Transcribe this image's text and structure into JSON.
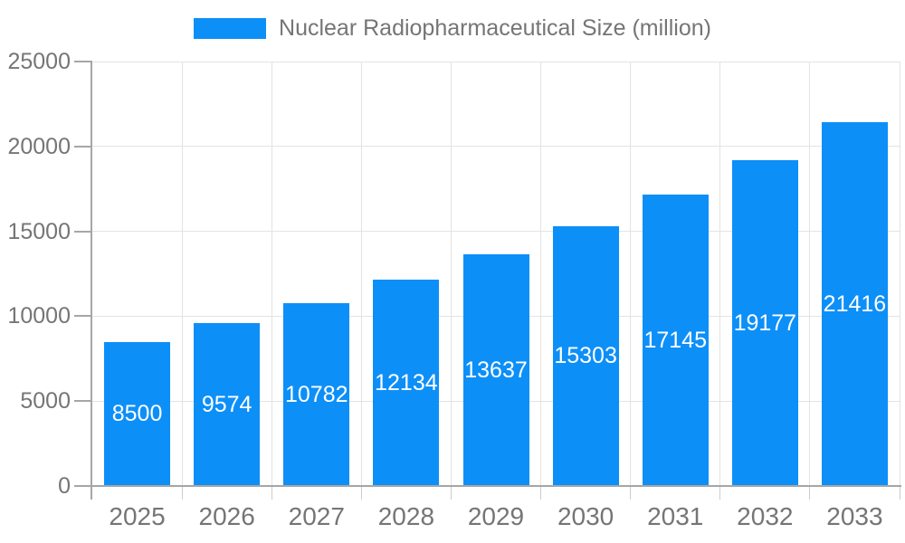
{
  "legend": {
    "label": "Nuclear Radiopharmaceutical Size (million)"
  },
  "chart_data": {
    "type": "bar",
    "title": "Nuclear Radiopharmaceutical Size (million)",
    "categories": [
      "2025",
      "2026",
      "2027",
      "2028",
      "2029",
      "2030",
      "2031",
      "2032",
      "2033"
    ],
    "series": [
      {
        "name": "Nuclear Radiopharmaceutical Size (million)",
        "values": [
          8500,
          9574,
          10782,
          12134,
          13637,
          15303,
          17145,
          19177,
          21416
        ]
      }
    ],
    "xlabel": "",
    "ylabel": "",
    "ylim": [
      0,
      25000
    ],
    "yticks": [
      0,
      5000,
      10000,
      15000,
      20000,
      25000
    ],
    "grid": true,
    "legend_position": "top-center",
    "value_label_position": "inside-center",
    "colors": {
      "bar": "#0d8ff8",
      "value_label": "#ffffff",
      "axis": "#a6a6a6",
      "gridline": "#e3e3e3",
      "minor_tick": "#cccccc",
      "tick_label": "#757575",
      "legend_text": "#757575",
      "background": "#ffffff"
    }
  }
}
